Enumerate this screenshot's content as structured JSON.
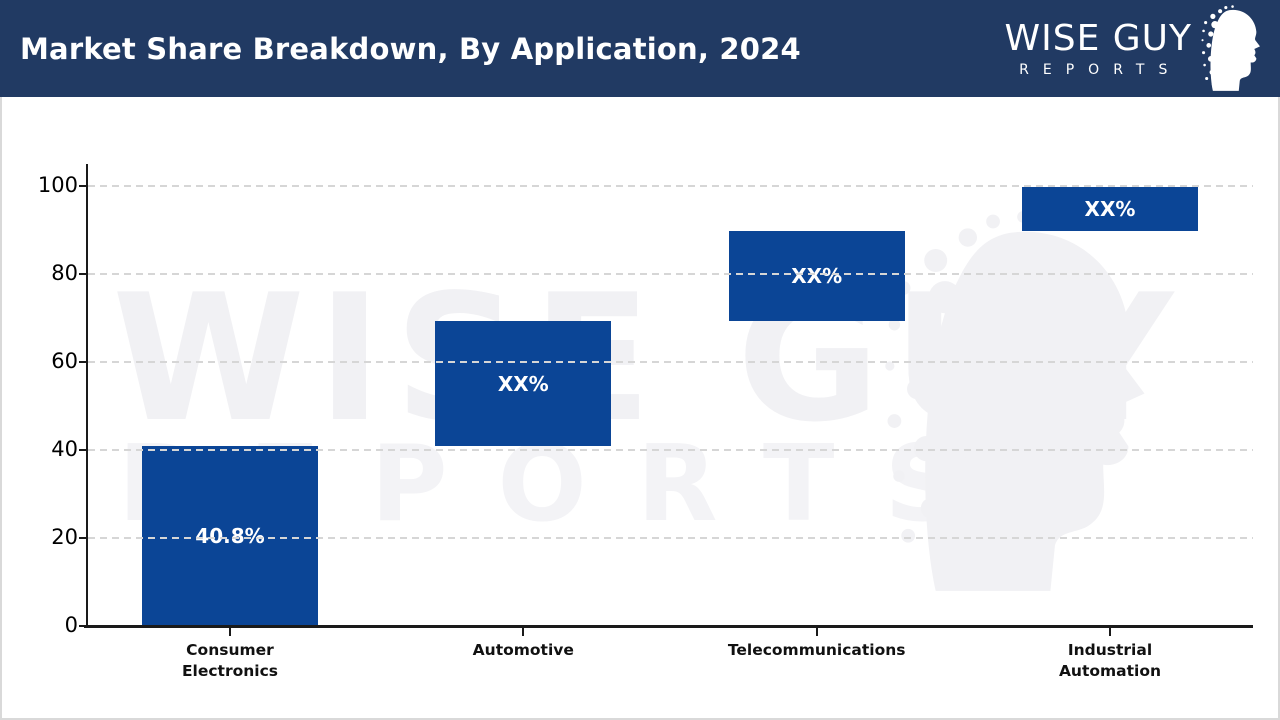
{
  "header": {
    "title": "Market Share Breakdown, By Application, 2024",
    "logo": {
      "name": "WISE GUY",
      "tagline": "REPORTS"
    }
  },
  "watermark": {
    "line1": "WISE GUY",
    "line2": "REPORTS"
  },
  "chart_data": {
    "type": "bar",
    "subtype": "waterfall",
    "title": "Market Share Breakdown, By Application, 2024",
    "xlabel": "",
    "ylabel": "",
    "ylim": [
      0,
      105
    ],
    "yticks": [
      0,
      20,
      40,
      60,
      80,
      100
    ],
    "grid": {
      "axis": "y",
      "style": "dashed",
      "color": "#d6d6d6",
      "on_top_of_bars": true
    },
    "legend": "none",
    "bar_color": "#0b4596",
    "value_label_color": "#ffffff",
    "categories": [
      "Consumer\nElectronics",
      "Automotive",
      "Telecommunications",
      "Industrial\nAutomation"
    ],
    "segments": [
      {
        "category": "Consumer Electronics",
        "start": 0,
        "end": 40.8,
        "label": "40.8%"
      },
      {
        "category": "Automotive",
        "start": 40.8,
        "end": 69.3,
        "label": "XX%"
      },
      {
        "category": "Telecommunications",
        "start": 69.3,
        "end": 89.8,
        "label": "XX%"
      },
      {
        "category": "Industrial Automation",
        "start": 89.8,
        "end": 99.8,
        "label": "XX%"
      }
    ]
  }
}
